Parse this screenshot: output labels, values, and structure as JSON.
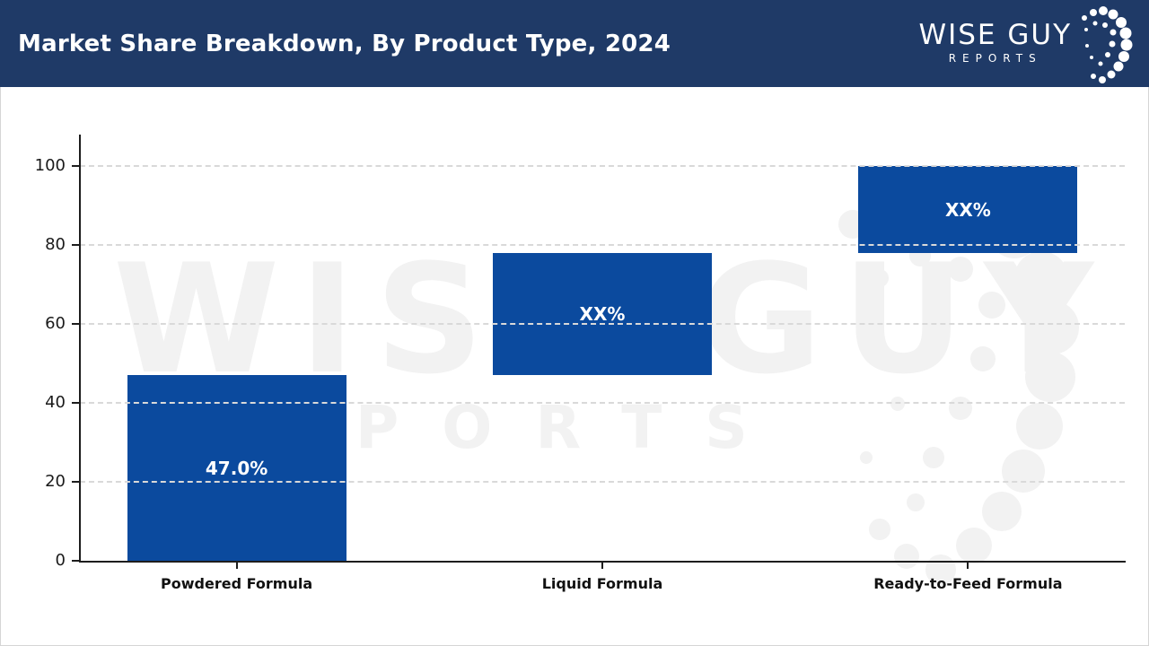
{
  "header": {
    "title": "Market Share Breakdown, By Product Type, 2024",
    "logo": {
      "name": "WISE GUY",
      "sub": "REPORTS"
    }
  },
  "watermark": {
    "line1": "WISE GUY",
    "line2": "REPORTS"
  },
  "colors": {
    "header_bg": "#1f3a67",
    "bar": "#0b4a9e",
    "bar_label": "#ffffff",
    "gridline": "#d9d9d9",
    "axis": "#1d1d1d",
    "watermark": "#f2f2f2"
  },
  "chart_data": {
    "type": "bar",
    "variant": "floating-waterfall",
    "title": "Market Share Breakdown, By Product Type, 2024",
    "categories": [
      "Powdered Formula",
      "Liquid Formula",
      "Ready-to-Feed Formula"
    ],
    "segments": [
      {
        "category": "Powdered Formula",
        "start": 0,
        "end": 47,
        "value": 47,
        "data_label": "47.0%"
      },
      {
        "category": "Liquid Formula",
        "start": 47,
        "end": 78,
        "value": 31,
        "data_label": "XX%"
      },
      {
        "category": "Ready-to-Feed Formula",
        "start": 78,
        "end": 100,
        "value": 22,
        "data_label": "XX%"
      }
    ],
    "xlabel": "",
    "ylabel": "",
    "ylim": [
      0,
      108
    ],
    "yticks": [
      0,
      20,
      40,
      60,
      80,
      100
    ],
    "grid": {
      "axis": "y",
      "style": "dashed"
    },
    "legend": "none"
  }
}
